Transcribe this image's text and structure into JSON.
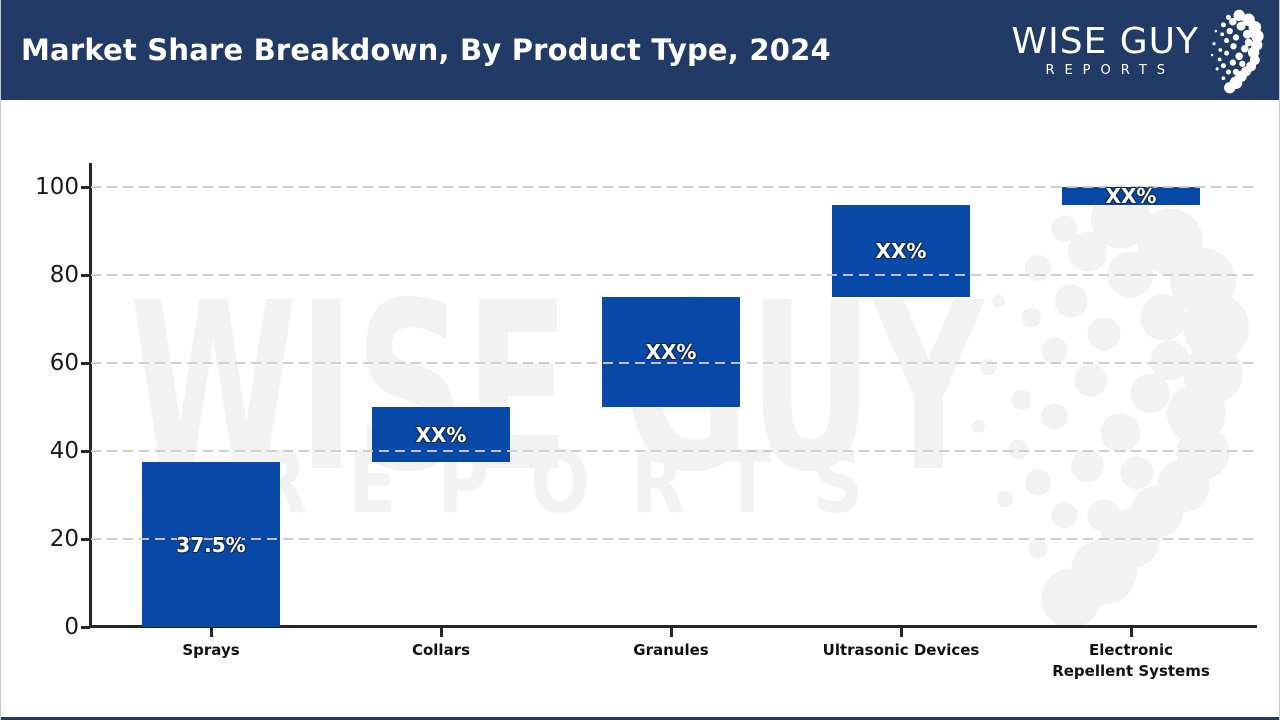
{
  "header": {
    "title": "Market Share Breakdown, By Product Type, 2024",
    "bg_color": "#213a66",
    "logo": {
      "line1": "WISE GUY",
      "line2": "REPORTS"
    }
  },
  "watermark": {
    "line1": "WISE GUY",
    "line2": "REPORTS"
  },
  "footer": {
    "bar_color": "#213a66"
  },
  "chart_data": {
    "type": "bar",
    "subtype": "waterfall",
    "title": "Market Share Breakdown, By Product Type, 2024",
    "categories": [
      "Sprays",
      "Collars",
      "Granules",
      "Ultrasonic Devices",
      "Electronic\nRepellent Systems"
    ],
    "segments": [
      {
        "category": "Sprays",
        "start": 0,
        "end": 37.5,
        "label": "37.5%"
      },
      {
        "category": "Collars",
        "start": 37.5,
        "end": 50,
        "label": "XX%"
      },
      {
        "category": "Granules",
        "start": 50,
        "end": 75,
        "label": "XX%"
      },
      {
        "category": "Ultrasonic Devices",
        "start": 75,
        "end": 96,
        "label": "XX%"
      },
      {
        "category": "Electronic Repellent Systems",
        "start": 96,
        "end": 100,
        "label": "XX%"
      }
    ],
    "yticks": [
      0,
      20,
      40,
      60,
      80,
      100
    ],
    "ylim": [
      0,
      105
    ],
    "xlabel": "",
    "ylabel": "",
    "bar_color": "#0848a6",
    "value_label_color": "#ffffff",
    "grid": "horizontal-dashed",
    "legend": "none"
  }
}
